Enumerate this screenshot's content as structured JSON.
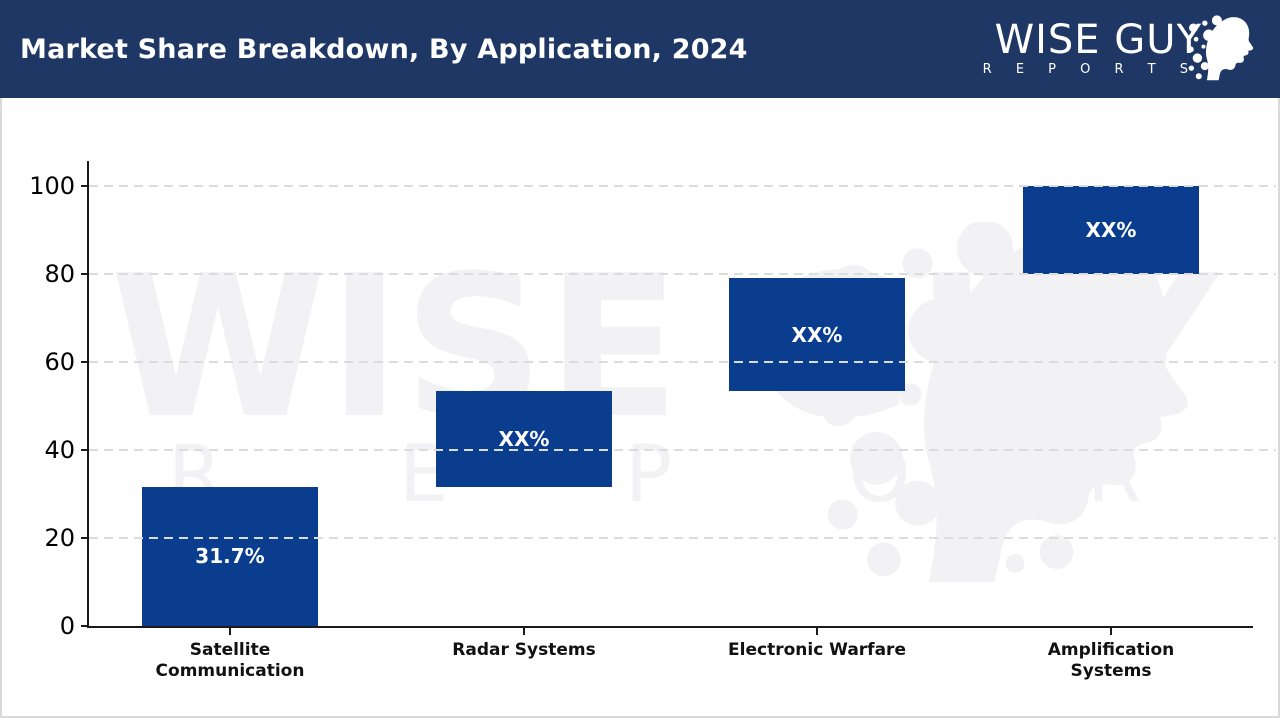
{
  "header": {
    "title": "Market Share Breakdown, By Application, 2024",
    "logo": {
      "name": "WISE GUY",
      "tagline": "R E P O R T S"
    }
  },
  "watermark": {
    "name": "WISE GUY",
    "tagline": "R E P O R T S"
  },
  "chart_data": {
    "type": "bar",
    "variant": "floating-waterfall",
    "title": "Market Share Breakdown, By Application, 2024",
    "categories": [
      "Satellite Communication",
      "Radar Systems",
      "Electronic Warfare",
      "Amplification Systems"
    ],
    "category_lines": [
      [
        "Satellite",
        "Communication"
      ],
      [
        "Radar Systems"
      ],
      [
        "Electronic Warfare"
      ],
      [
        "Amplification",
        "Systems"
      ]
    ],
    "series": [
      {
        "name": "Market share (%)",
        "ranges": [
          [
            0,
            31.7
          ],
          [
            31.7,
            53.3
          ],
          [
            53.3,
            79.2
          ],
          [
            79.9,
            100
          ]
        ],
        "labels": [
          "31.7%",
          "XX%",
          "XX%",
          "XX%"
        ]
      }
    ],
    "yticks": [
      0,
      20,
      40,
      60,
      80,
      100
    ],
    "ylim": [
      0,
      106
    ],
    "xlabel": "",
    "ylabel": "",
    "grid": "horizontal-dashed",
    "legend": "none",
    "colors": {
      "bar": "#0b3d8e",
      "grid": "#dcdcdc",
      "axis": "#1a1a1a",
      "header_bg": "#1f3764",
      "watermark": "#f2f2f4",
      "bar_label": "#ffffff"
    }
  }
}
